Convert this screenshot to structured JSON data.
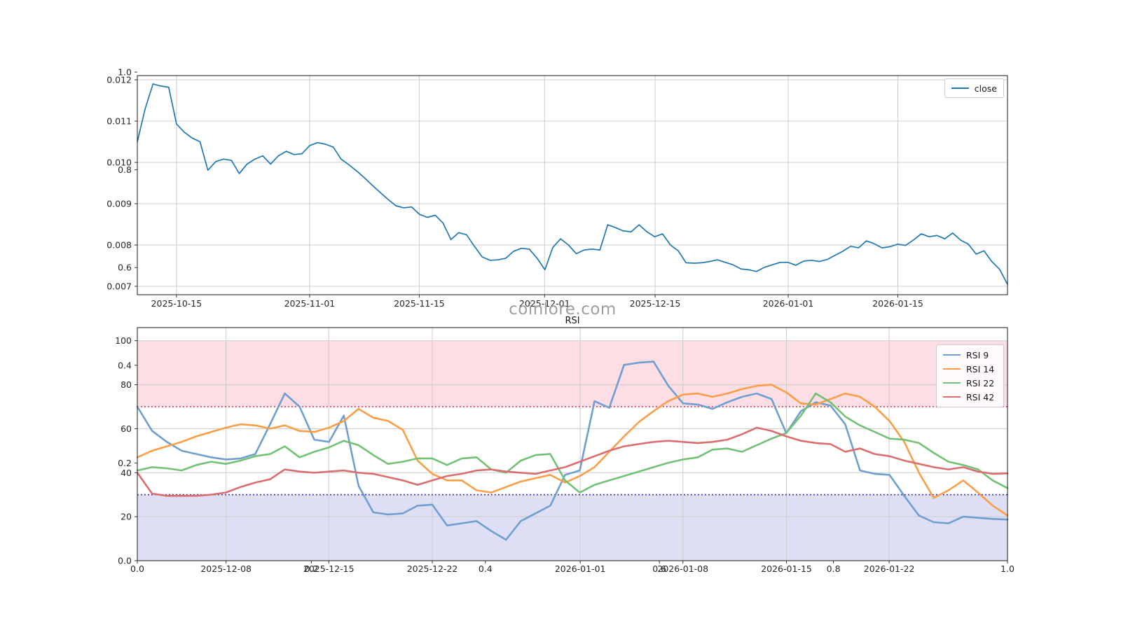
{
  "watermark": "coinlore.com",
  "secondary_axis": {
    "y_labels": [
      "1.0",
      "0.8",
      "0.6",
      "0.4",
      "0.2",
      "0.0"
    ],
    "x_labels": [
      "0.0",
      "0.2",
      "0.4",
      "0.6",
      "0.8",
      "1.0"
    ]
  },
  "chart_data": [
    {
      "id": "price",
      "type": "line",
      "title": "",
      "grid": true,
      "legend_position": "upper right",
      "legend": [
        {
          "label": "close",
          "color": "#1f77b4"
        }
      ],
      "x_start_date": "2025-10-10",
      "x_end_date": "2026-01-30",
      "ylim": [
        0.0068,
        0.01212
      ],
      "yticks": [
        {
          "label": "0.012",
          "v": 0.012
        },
        {
          "label": "0.011",
          "v": 0.011
        },
        {
          "label": "0.010",
          "v": 0.01
        },
        {
          "label": "0.009",
          "v": 0.009
        },
        {
          "label": "0.008",
          "v": 0.008
        },
        {
          "label": "0.007",
          "v": 0.007
        }
      ],
      "xticks": [
        {
          "label": "2025-10-15",
          "f": 0.045
        },
        {
          "label": "2025-11-01",
          "f": 0.198
        },
        {
          "label": "2025-11-15",
          "f": 0.324
        },
        {
          "label": "2025-12-01",
          "f": 0.468
        },
        {
          "label": "2025-12-15",
          "f": 0.595
        },
        {
          "label": "2026-01-01",
          "f": 0.748
        },
        {
          "label": "2026-01-15",
          "f": 0.874
        }
      ],
      "series": [
        {
          "name": "close",
          "color": "#1f77b4",
          "width": 1.7,
          "values": [
            0.0105,
            0.0113,
            0.0119,
            0.01185,
            0.01182,
            0.01093,
            0.01073,
            0.01059,
            0.0105,
            0.00981,
            0.01002,
            0.01008,
            0.01005,
            0.00973,
            0.00996,
            0.01008,
            0.01016,
            0.00996,
            0.01016,
            0.01027,
            0.01019,
            0.01021,
            0.01041,
            0.01048,
            0.01044,
            0.01037,
            0.01008,
            0.00994,
            0.00979,
            0.00962,
            0.00944,
            0.00927,
            0.0091,
            0.00895,
            0.0089,
            0.00892,
            0.00874,
            0.00867,
            0.00872,
            0.00853,
            0.00813,
            0.0083,
            0.00825,
            0.00797,
            0.00771,
            0.00763,
            0.00764,
            0.00768,
            0.00785,
            0.00792,
            0.0079,
            0.00768,
            0.0074,
            0.00794,
            0.00815,
            0.008,
            0.00779,
            0.00788,
            0.0079,
            0.00788,
            0.00849,
            0.00842,
            0.00834,
            0.00832,
            0.00849,
            0.00832,
            0.0082,
            0.00827,
            0.008,
            0.00786,
            0.00757,
            0.00756,
            0.00757,
            0.0076,
            0.00764,
            0.00758,
            0.00752,
            0.00742,
            0.0074,
            0.00736,
            0.00746,
            0.00752,
            0.00758,
            0.00758,
            0.00751,
            0.00761,
            0.00763,
            0.0076,
            0.00765,
            0.00775,
            0.00785,
            0.00797,
            0.00793,
            0.0081,
            0.00803,
            0.00793,
            0.00796,
            0.00802,
            0.00799,
            0.00812,
            0.00827,
            0.0082,
            0.00823,
            0.00815,
            0.00829,
            0.00812,
            0.00802,
            0.00778,
            0.00786,
            0.0076,
            0.00741,
            0.00705
          ]
        }
      ]
    },
    {
      "id": "rsi",
      "type": "line",
      "title": "RSI",
      "grid": true,
      "legend_position": "upper right",
      "legend": [
        {
          "label": "RSI 9",
          "color": "#6f9fd0"
        },
        {
          "label": "RSI 14",
          "color": "#fb9e45"
        },
        {
          "label": "RSI 22",
          "color": "#72c174"
        },
        {
          "label": "RSI 42",
          "color": "#da6e6e"
        }
      ],
      "x_start_date": "2025-12-02",
      "x_end_date": "2026-01-30",
      "ylim": [
        0,
        106
      ],
      "yticks": [
        {
          "label": "100",
          "v": 100
        },
        {
          "label": "80",
          "v": 80
        },
        {
          "label": "60",
          "v": 60
        },
        {
          "label": "40",
          "v": 40
        },
        {
          "label": "20",
          "v": 20
        }
      ],
      "xticks": [
        {
          "label": "2025-12-08",
          "f": 0.102
        },
        {
          "label": "2025-12-15",
          "f": 0.22
        },
        {
          "label": "2025-12-22",
          "f": 0.339
        },
        {
          "label": "2026-01-01",
          "f": 0.509
        },
        {
          "label": "2026-01-08",
          "f": 0.627
        },
        {
          "label": "2026-01-15",
          "f": 0.746
        },
        {
          "label": "2026-01-22",
          "f": 0.864
        }
      ],
      "bands": [
        {
          "from": 70,
          "to": 100,
          "color": "#fcdee4"
        },
        {
          "from": 0,
          "to": 30,
          "color": "#dedef4"
        }
      ],
      "threshold_lines": [
        {
          "value": 70,
          "color": "#dc1432"
        },
        {
          "value": 30,
          "color": "#1d1dc9"
        }
      ],
      "series": [
        {
          "name": "RSI 9",
          "color": "#6f9fd0",
          "width": 2.6,
          "values": [
            70,
            59,
            54,
            50,
            48.5,
            47,
            46,
            46.5,
            48.5,
            62,
            76,
            70,
            55,
            54,
            66,
            34,
            22,
            21,
            21.5,
            25,
            25.5,
            16,
            17,
            18,
            13.5,
            9.5,
            18,
            21.5,
            25,
            39,
            41,
            72.5,
            69.5,
            89,
            90,
            90.5,
            79.5,
            71.5,
            71,
            69,
            72,
            74.5,
            76,
            73.5,
            58,
            68,
            72,
            70.5,
            62,
            41,
            39.5,
            39,
            29.5,
            20.5,
            17.5,
            17,
            20,
            19.5,
            19,
            18.7
          ]
        },
        {
          "name": "RSI 14",
          "color": "#fb9e45",
          "width": 2.6,
          "values": [
            47,
            50,
            52,
            54,
            56.5,
            58.5,
            60.5,
            62,
            61.5,
            60,
            61.5,
            59,
            58.5,
            60.5,
            63.5,
            69,
            65,
            63.5,
            59.5,
            45.5,
            39.5,
            36.5,
            36.5,
            32,
            31,
            33.5,
            36,
            37.5,
            39,
            35.5,
            38.5,
            42.5,
            49.5,
            56.5,
            63,
            68,
            72.5,
            75.5,
            76,
            74.5,
            76,
            78,
            79.5,
            80,
            76.5,
            71.5,
            71,
            73.5,
            76,
            74.5,
            70,
            63.5,
            54,
            40,
            28.5,
            32,
            36.5,
            31,
            25,
            20.6
          ]
        },
        {
          "name": "RSI 22",
          "color": "#72c174",
          "width": 2.6,
          "values": [
            41,
            42.5,
            42,
            41,
            43.5,
            45,
            44,
            45.5,
            47.5,
            48.5,
            52,
            47,
            49.5,
            51.5,
            54.5,
            52.5,
            48,
            44,
            45,
            46.5,
            46.5,
            43.5,
            46.5,
            47,
            41.5,
            40,
            45.5,
            48,
            48.5,
            36.5,
            31,
            34.5,
            36.5,
            38.5,
            40.5,
            42.5,
            44.5,
            46,
            47,
            50.5,
            51,
            49.5,
            52.5,
            55.5,
            58,
            66,
            76,
            72,
            65.5,
            61.5,
            58.5,
            55.5,
            55,
            53.5,
            49,
            45,
            43.5,
            41.5,
            36.5,
            33
          ]
        },
        {
          "name": "RSI 42",
          "color": "#da6e6e",
          "width": 2.6,
          "values": [
            40,
            30.5,
            29.5,
            29.5,
            29.5,
            30,
            31,
            33.5,
            35.5,
            37,
            41.5,
            40.5,
            40,
            40.5,
            41,
            40,
            39.5,
            38,
            36.5,
            34.5,
            36.5,
            38.5,
            39.5,
            41,
            41.5,
            40.5,
            40,
            39.5,
            41,
            42.5,
            45,
            47.5,
            50,
            52,
            53,
            54,
            54.5,
            54,
            53.5,
            54,
            55,
            57.5,
            60.5,
            59,
            56.5,
            54.5,
            53.5,
            53,
            49.5,
            51,
            48.5,
            47.5,
            45.5,
            44,
            42.5,
            41.5,
            42.5,
            40.5,
            39.5,
            39.7
          ]
        }
      ]
    }
  ]
}
